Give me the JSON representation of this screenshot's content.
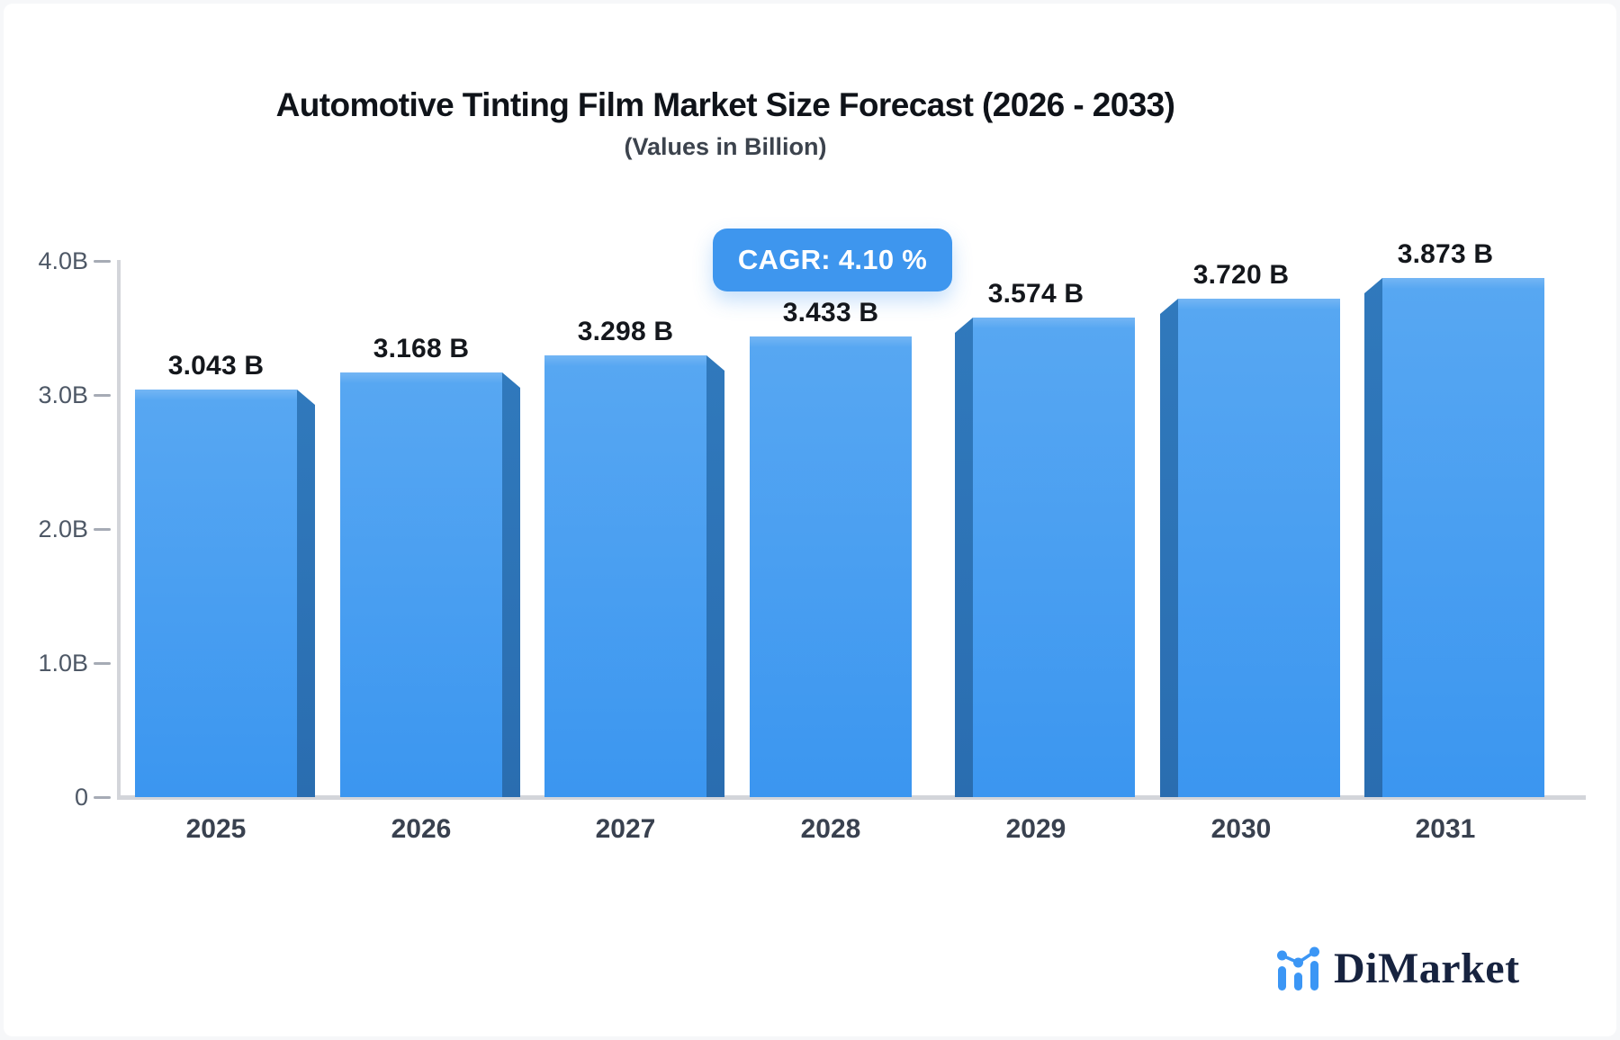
{
  "header": {
    "title": "Automotive Tinting Film Market Size Forecast (2026 - 2033)",
    "subtitle": "(Values in Billion)",
    "cagr_badge": "CAGR: 4.10 %"
  },
  "chart_data": {
    "type": "bar",
    "title": "Automotive Tinting Film Market Size Forecast (2026 - 2033)",
    "subtitle": "(Values in Billion)",
    "categories": [
      "2025",
      "2026",
      "2027",
      "2028",
      "2029",
      "2030",
      "2031"
    ],
    "values": [
      3.043,
      3.168,
      3.298,
      3.433,
      3.574,
      3.72,
      3.873
    ],
    "value_labels": [
      "3.043 B",
      "3.168 B",
      "3.298 B",
      "3.433 B",
      "3.574 B",
      "3.720 B",
      "3.873 B"
    ],
    "unit": "Billion",
    "xlabel": "",
    "ylabel": "",
    "ylim": [
      0,
      4
    ],
    "ytick_labels": [
      "0",
      "1.0B",
      "2.0B",
      "3.0B",
      "4.0B"
    ],
    "grid": false,
    "legend": false,
    "annotation": "CAGR: 4.10 %",
    "bar_style": "3d-beveled",
    "side_direction": [
      "right",
      "right",
      "right",
      "none",
      "left",
      "left",
      "left"
    ],
    "colors": {
      "bar_top": "#6eb3f4",
      "bar_bottom": "#3b96f0",
      "bar_side": "#2d74b8",
      "badge_bg": "#3e96ee",
      "badge_text": "#ffffff",
      "axis_line": "#d3d5da",
      "tick_text": "#4e5866",
      "label_text": "#14171c"
    }
  },
  "brand": {
    "name": "DiMarket",
    "icon": "mini-bar-chart-logo-icon",
    "icon_color": "#3b96f5",
    "text_color": "#17233f"
  }
}
